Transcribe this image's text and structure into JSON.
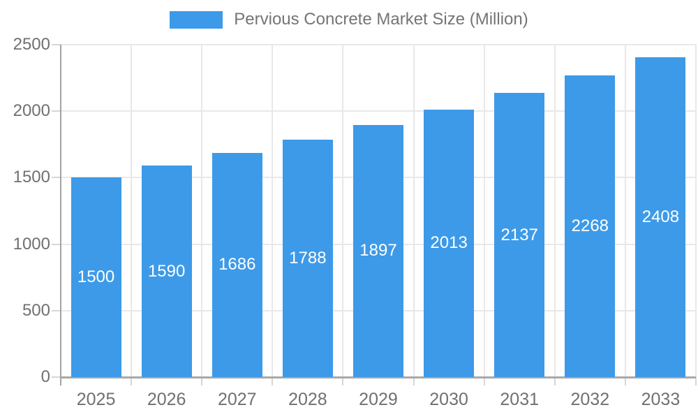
{
  "chart_data": {
    "type": "bar",
    "title": "Pervious Concrete Market Size (Million)",
    "categories": [
      "2025",
      "2026",
      "2027",
      "2028",
      "2029",
      "2030",
      "2031",
      "2032",
      "2033"
    ],
    "values": [
      1500,
      1590,
      1686,
      1788,
      1897,
      2013,
      2137,
      2268,
      2408
    ],
    "xlabel": "",
    "ylabel": "",
    "ylim": [
      0,
      2500
    ],
    "yticks": [
      0,
      500,
      1000,
      1500,
      2000,
      2500
    ],
    "grid": true,
    "legend_position": "top-center",
    "bar_color": "#3d9ae8",
    "bar_label_color": "#ffffff",
    "axis_text_color": "#707070",
    "legend_text_color": "#757575",
    "gridline_color": "#e8e8e8",
    "axis_line_color": "#a3a3a3"
  }
}
